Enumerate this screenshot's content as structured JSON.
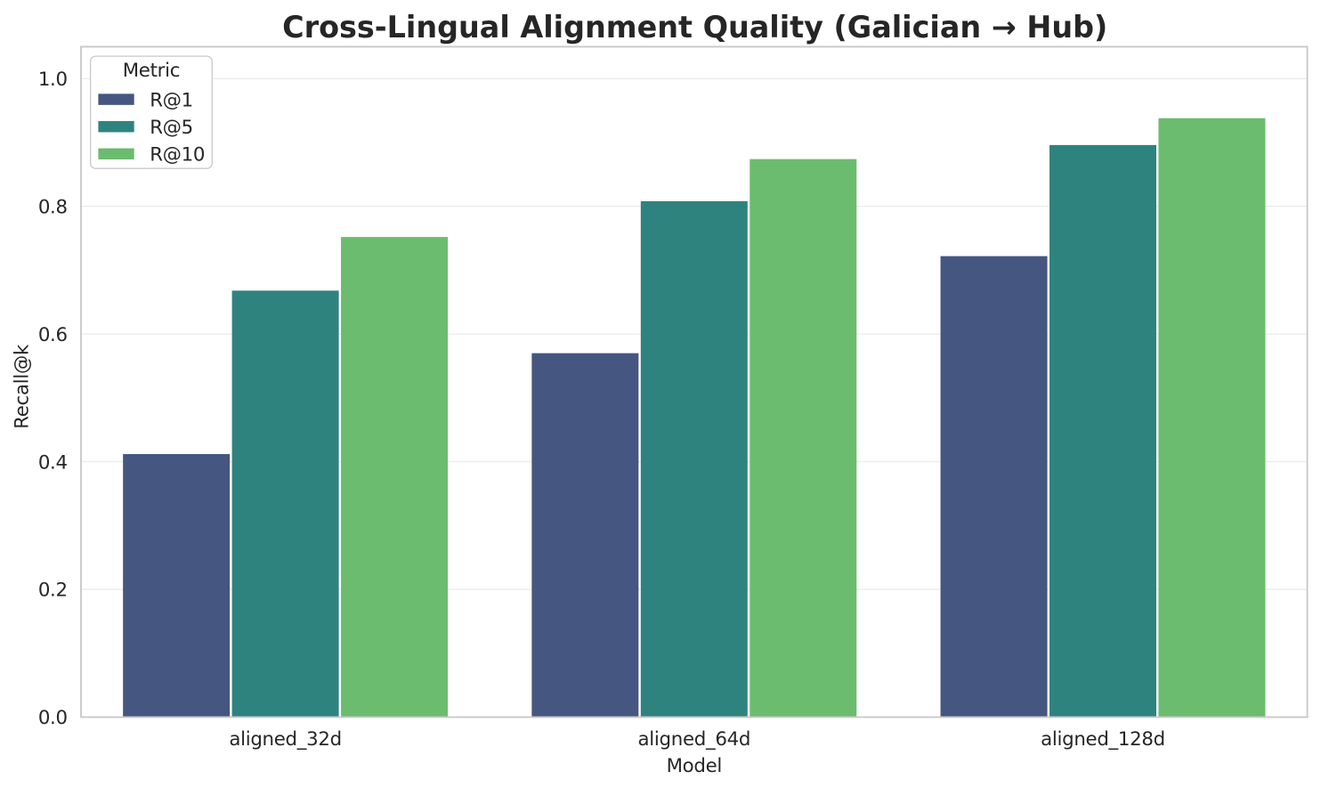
{
  "title": "Cross-Lingual Alignment Quality (Galician → Hub)",
  "chart_data": {
    "type": "bar",
    "title": "Cross-Lingual Alignment Quality (Galician → Hub)",
    "xlabel": "Model",
    "ylabel": "Recall@k",
    "categories": [
      "aligned_32d",
      "aligned_64d",
      "aligned_128d"
    ],
    "series": [
      {
        "name": "R@1",
        "color": "#455681",
        "values": [
          0.412,
          0.57,
          0.722
        ]
      },
      {
        "name": "R@5",
        "color": "#2f837f",
        "values": [
          0.668,
          0.808,
          0.896
        ]
      },
      {
        "name": "R@10",
        "color": "#6bbc6e",
        "values": [
          0.752,
          0.874,
          0.938
        ]
      }
    ],
    "ylim": [
      0,
      1.05
    ],
    "yticks": [
      0.0,
      0.2,
      0.4,
      0.6,
      0.8,
      1.0
    ],
    "ytick_labels": [
      "0.0",
      "0.2",
      "0.4",
      "0.6",
      "0.8",
      "1.0"
    ],
    "grid": "horizontal",
    "legend_title": "Metric",
    "legend_position": "upper left"
  },
  "colors": {
    "text": "#262626",
    "spine": "#c9c9c9",
    "grid": "#ececec",
    "background": "#ffffff"
  }
}
